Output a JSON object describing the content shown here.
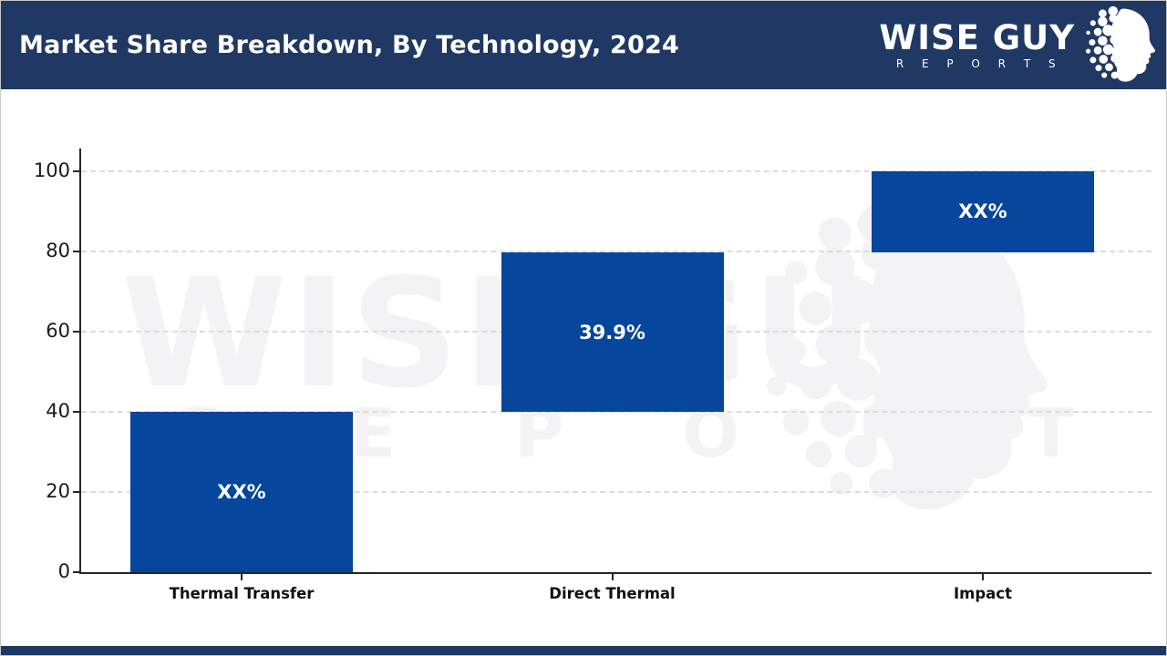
{
  "header": {
    "title": "Market Share Breakdown, By Technology, 2024",
    "logo_line1": "WISE GUY",
    "logo_line2": "R E P O R T S"
  },
  "watermark": {
    "line1": "WISE GUY",
    "line2": "R E P O R T S"
  },
  "chart_data": {
    "type": "bar",
    "variant": "floating-waterfall",
    "title": "Market Share Breakdown, By Technology, 2024",
    "categories": [
      "Thermal Transfer",
      "Direct Thermal",
      "Impact"
    ],
    "segments": [
      {
        "category": "Thermal Transfer",
        "start": 0,
        "end": 39.9,
        "label": "XX%"
      },
      {
        "category": "Direct Thermal",
        "start": 39.9,
        "end": 79.8,
        "label": "39.9%"
      },
      {
        "category": "Impact",
        "start": 79.8,
        "end": 100,
        "label": "XX%"
      }
    ],
    "ylim": [
      0,
      100
    ],
    "yticks": [
      0,
      20,
      40,
      60,
      80,
      100
    ],
    "xlabel": "",
    "ylabel": "",
    "legend": "none",
    "grid": {
      "horizontal": true,
      "style": "dashed"
    },
    "bar_color": "#06469c"
  },
  "colors": {
    "header_bg": "#1f3864",
    "footer_bg": "#1f3864",
    "bar": "#06469c",
    "grid": "#dcdcdc",
    "axis": "#262626",
    "tick_text": "#1a1a1a",
    "watermark": "#f3f3f5",
    "title_text": "#ffffff",
    "bar_label_text": "#ffffff"
  }
}
